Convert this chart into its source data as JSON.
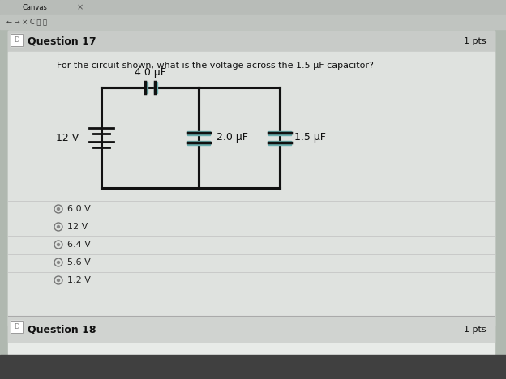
{
  "title": "Question 17",
  "pts": "1 pts",
  "question_text": "For the circuit shown, what is the voltage across the 1.5 μF capacitor?",
  "cap_top": "4.0 μF",
  "cap_mid": "2.0 μF",
  "cap_right": "1.5 μF",
  "voltage": "12 V",
  "choices": [
    "6.0 V",
    "12 V",
    "6.4 V",
    "5.6 V",
    "1.2 V"
  ],
  "bg_color": "#b0b8b0",
  "panel_color": "#e8e8e8",
  "white_panel": "#e8ebe8",
  "content_color": "#dfe2df",
  "cap_fill": "#6aafaf",
  "line_color": "#111111",
  "text_color": "#111111",
  "choice_color": "#222222",
  "q17_bar_color": "#c8cbc8",
  "q18_bar_color": "#d0d3d0",
  "question18_text": "Question 18",
  "question18_pts": "1 pts",
  "tab_color": "#b8bcb8",
  "addr_color": "#c0c4c0"
}
